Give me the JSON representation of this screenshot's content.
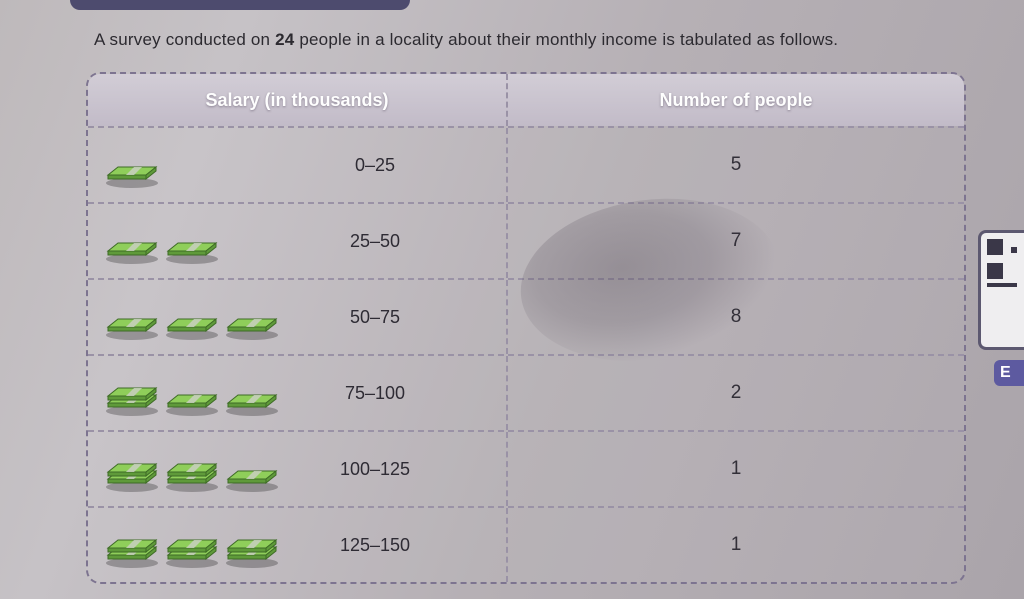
{
  "intro": {
    "prefix": "A survey conducted on ",
    "count": "24",
    "suffix": " people in a locality about their monthly income is tabulated as follows."
  },
  "table": {
    "header_left": "Salary (in thousands)",
    "header_right": "Number of people",
    "rows": [
      {
        "range": "0–25",
        "count": "5",
        "stacks": [
          1
        ]
      },
      {
        "range": "25–50",
        "count": "7",
        "stacks": [
          1,
          1
        ]
      },
      {
        "range": "50–75",
        "count": "8",
        "stacks": [
          1,
          1,
          1
        ]
      },
      {
        "range": "75–100",
        "count": "2",
        "stacks": [
          2,
          1,
          1
        ]
      },
      {
        "range": "100–125",
        "count": "1",
        "stacks": [
          2,
          2,
          1
        ]
      },
      {
        "range": "125–150",
        "count": "1",
        "stacks": [
          2,
          2,
          2
        ]
      }
    ]
  },
  "colors": {
    "money_top": "#8fce5a",
    "money_side": "#5f9a3a",
    "money_edge": "#3e6b26",
    "band": "#c9cfc1"
  },
  "side_label": "E"
}
